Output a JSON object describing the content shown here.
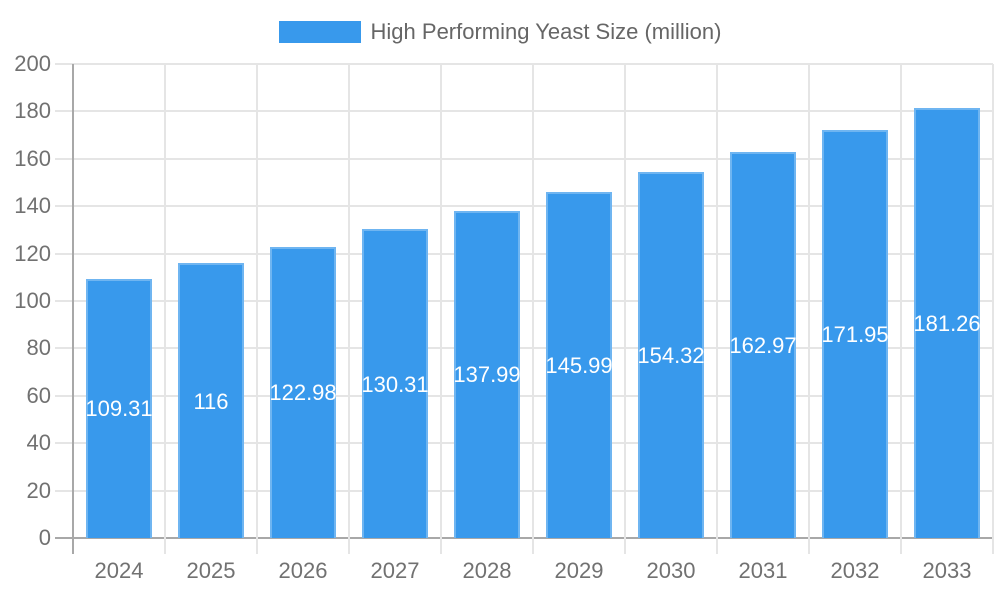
{
  "chart_data": {
    "type": "bar",
    "title": "High Performing Yeast Size (million)",
    "legend": {
      "label": "High Performing Yeast Size (million)",
      "position": "top"
    },
    "categories": [
      "2024",
      "2025",
      "2026",
      "2027",
      "2028",
      "2029",
      "2030",
      "2031",
      "2032",
      "2033"
    ],
    "series": [
      {
        "name": "High Performing Yeast Size (million)",
        "values": [
          109.31,
          116,
          122.98,
          130.31,
          137.99,
          145.99,
          154.32,
          162.97,
          171.95,
          181.26
        ],
        "value_labels": [
          "109.31",
          "116",
          "122.98",
          "130.31",
          "137.99",
          "145.99",
          "154.32",
          "162.97",
          "171.95",
          "181.26"
        ]
      }
    ],
    "xlabel": "",
    "ylabel": "",
    "ylim": [
      0,
      200
    ],
    "ytick_step": 20,
    "yticks": [
      0,
      20,
      40,
      60,
      80,
      100,
      120,
      140,
      160,
      180,
      200
    ],
    "grid": true,
    "value_labels_position": "center-inside-bar",
    "colors": {
      "bar": "#3899EC",
      "grid": "#E5E5E5",
      "axis": "#A8A8A8",
      "tick_label": "#717171",
      "legend_text": "#666666",
      "value_label": "#FFFFFF",
      "background": "#FFFFFF"
    }
  }
}
